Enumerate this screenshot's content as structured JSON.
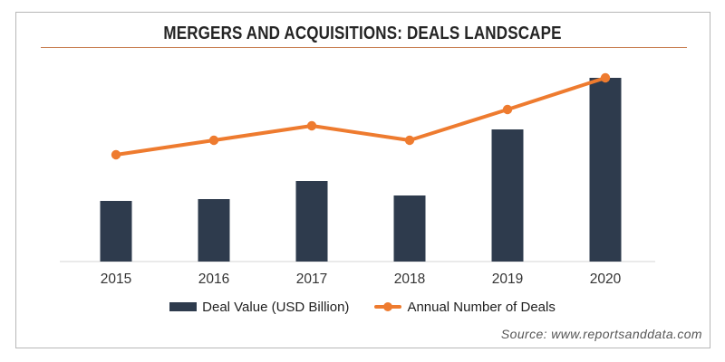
{
  "page": {
    "background": "#ffffff",
    "frame_border_color": "#b7b7b7"
  },
  "header": {
    "title": "MERGERS AND ACQUISITIONS: DEALS LANDSCAPE",
    "title_color": "#242424",
    "divider_color": "#c87f53"
  },
  "chart_data": {
    "type": "bar",
    "subtype": "combo-bar-line",
    "title": "MERGERS AND ACQUISITIONS: DEALS LANDSCAPE",
    "categories": [
      "2015",
      "2016",
      "2017",
      "2018",
      "2019",
      "2020"
    ],
    "series": [
      {
        "name": "Deal Value (USD Billion)",
        "type": "bar",
        "color": "#2e3b4d",
        "values": [
          33,
          34,
          44,
          36,
          72,
          100
        ]
      },
      {
        "name": "Annual Number of Deals",
        "type": "line",
        "color": "#ee7b2f",
        "values": [
          58,
          66,
          74,
          66,
          83,
          100
        ]
      }
    ],
    "xlabel": "",
    "ylabel": "",
    "ylim": [
      0,
      105
    ],
    "y_axis_visible": false,
    "gridlines": false,
    "legend_position": "bottom",
    "axis_line_color": "#dddddd",
    "tick_label_color": "#333333",
    "note": "No y-axis or value labels shown in source image; series values are relative units estimated from pixel heights with 2020 = 100."
  },
  "legend": {
    "items": [
      {
        "label": "Deal Value (USD Billion)",
        "swatch": "bar",
        "color": "#2e3b4d"
      },
      {
        "label": "Annual Number of Deals",
        "swatch": "line-marker",
        "color": "#ee7b2f"
      }
    ]
  },
  "footer": {
    "source": "Source: www.reportsanddata.com"
  }
}
